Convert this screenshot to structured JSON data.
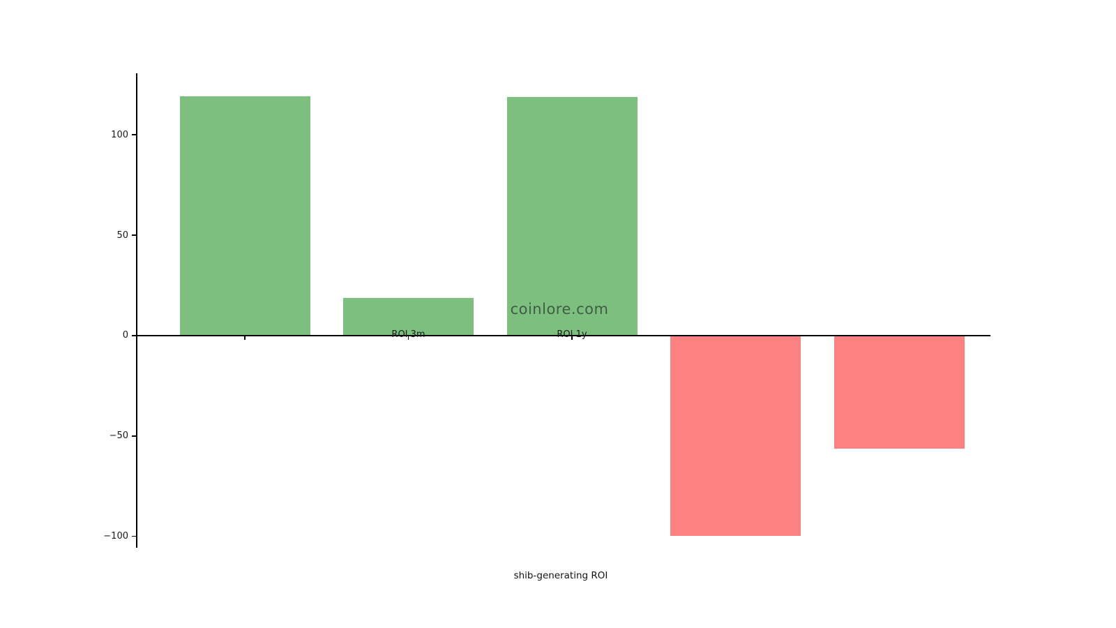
{
  "chart_data": {
    "type": "bar",
    "title": "",
    "xlabel": "shib-generating ROI",
    "ylabel": "",
    "categories": [
      "",
      "ROI 3m",
      "ROI 1y",
      "",
      ""
    ],
    "values": [
      119.3,
      18.8,
      118.9,
      -99.7,
      -56.2
    ],
    "bar_colors": [
      "#7cbf7e",
      "#7cbf7e",
      "#7cbf7e",
      "#fc8181",
      "#fc8181"
    ],
    "positive_color": "#7cbf7e",
    "negative_color": "#fc8181",
    "y_ticks": [
      {
        "value": 100,
        "label": "100"
      },
      {
        "value": 50,
        "label": "50"
      },
      {
        "value": 0,
        "label": "0"
      },
      {
        "value": -50,
        "label": "−50"
      },
      {
        "value": -100,
        "label": "−100"
      }
    ],
    "ylim": [
      -105.6,
      130.6
    ],
    "grid": false,
    "legend": null
  },
  "watermark": {
    "text": "coinlore.com",
    "color": "#415c45"
  },
  "axis": {
    "spine_color": "#000000",
    "tick_label_color": "#1a1a1a"
  }
}
